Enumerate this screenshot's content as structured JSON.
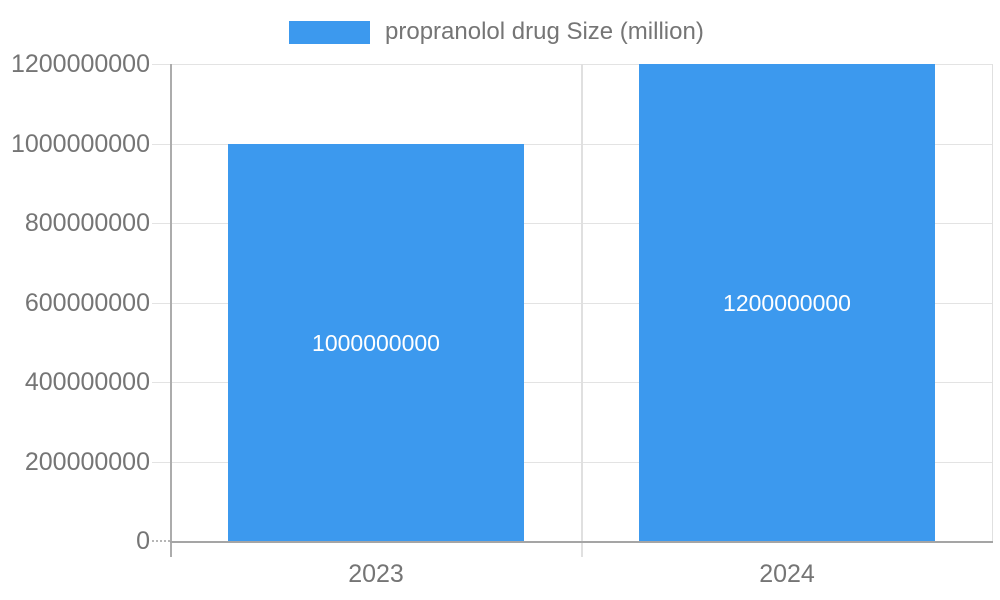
{
  "chart_data": {
    "type": "bar",
    "title": "",
    "xlabel": "",
    "ylabel": "",
    "legend": {
      "label": "propranolol drug Size (million)",
      "position": "top"
    },
    "categories": [
      "2023",
      "2024"
    ],
    "series": [
      {
        "name": "propranolol drug Size (million)",
        "values": [
          1000000000,
          1200000000
        ]
      }
    ],
    "bar_value_labels": [
      "1000000000",
      "1200000000"
    ],
    "ylim": [
      0,
      1200000000
    ],
    "ytick_step": 200000000,
    "ytick_labels": [
      "0",
      "200000000",
      "400000000",
      "600000000",
      "800000000",
      "1000000000",
      "1200000000"
    ],
    "grid": true,
    "colors": {
      "bar": "#3C99EE",
      "axis_text": "#757575",
      "bar_label_text": "#FFFFFF",
      "gridline": "#E3E3E3",
      "axis_line": "#ACACAC",
      "baseline": "#A5A5A5",
      "separator": "#E0E0E0",
      "background": "#FFFFFF"
    }
  }
}
